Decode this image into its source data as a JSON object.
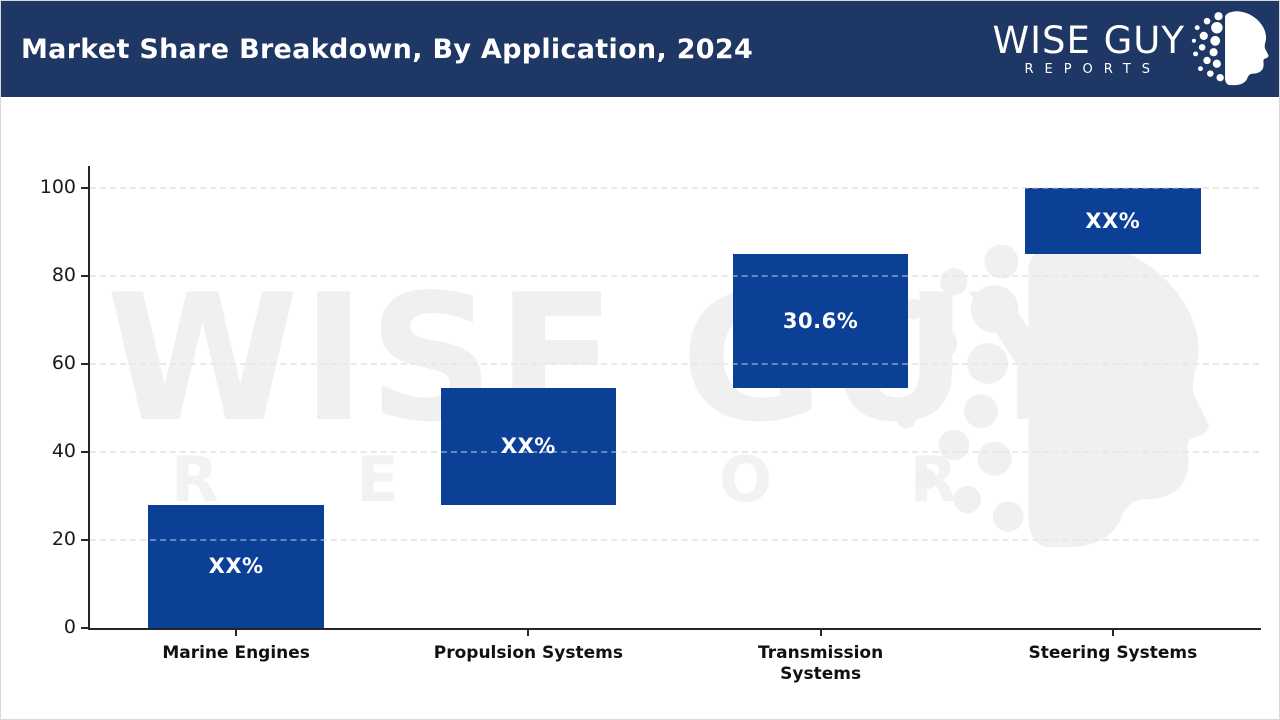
{
  "header": {
    "title": "Market Share Breakdown, By Application, 2024",
    "logo": {
      "wordmark": "WISE GUY",
      "subtext": "REPORTS"
    }
  },
  "watermark": {
    "wordmark": "WISE GUY",
    "subtext": "R E P O R T S"
  },
  "chart_data": {
    "type": "bar",
    "subtype": "waterfall",
    "title": "Market Share Breakdown, By Application, 2024",
    "xlabel": "",
    "ylabel": "",
    "ylim": [
      0,
      100
    ],
    "yticks": [
      0,
      20,
      40,
      60,
      80,
      100
    ],
    "grid": "horizontal-dashed",
    "legend": "none",
    "categories": [
      "Marine Engines",
      "Propulsion Systems",
      "Transmission\nSystems",
      "Steering Systems"
    ],
    "segments": [
      {
        "category": "Marine Engines",
        "start": 0,
        "end": 28,
        "value": 28,
        "label": "XX%"
      },
      {
        "category": "Propulsion Systems",
        "start": 28,
        "end": 54.5,
        "value": 26.5,
        "label": "XX%"
      },
      {
        "category": "Transmission Systems",
        "start": 54.5,
        "end": 85.1,
        "value": 30.6,
        "label": "30.6%"
      },
      {
        "category": "Steering Systems",
        "start": 85.1,
        "end": 100,
        "value": 14.9,
        "label": "XX%"
      }
    ],
    "bar_color": "#0B4096",
    "bar_label_color": "#ffffff"
  },
  "colors": {
    "header_bg": "#1E3765",
    "bar": "#0B4096",
    "axis": "#262626",
    "grid": "#dcdcdc",
    "text": "#111111",
    "watermark": "#f0f0f0",
    "page_border": "#d9d9d9"
  }
}
